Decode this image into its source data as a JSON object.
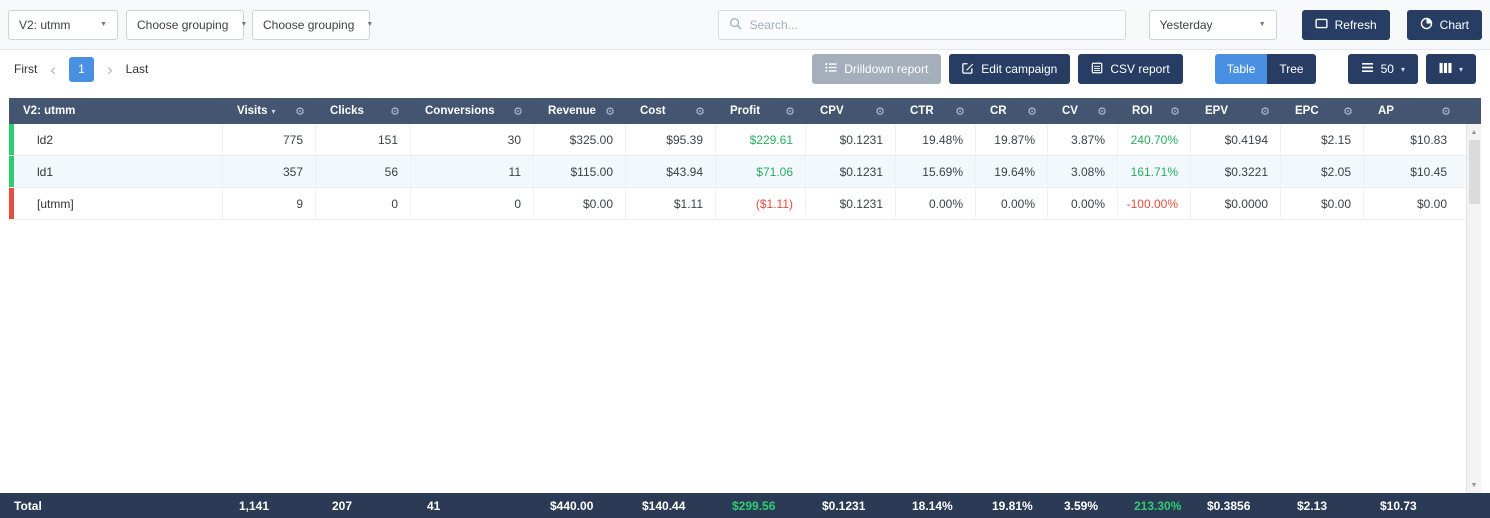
{
  "toolbar": {
    "campaign_dropdown": {
      "value": "V2: utmm"
    },
    "grouping_dropdown_1": {
      "value": "Choose grouping"
    },
    "grouping_dropdown_2": {
      "value": "Choose grouping"
    },
    "search": {
      "placeholder": "Search..."
    },
    "date_dropdown": {
      "value": "Yesterday"
    },
    "refresh_button": "Refresh",
    "chart_button": "Chart"
  },
  "pagination": {
    "first": "First",
    "current_page": "1",
    "last": "Last"
  },
  "actions": {
    "drilldown_button": "Drilldown report",
    "edit_campaign_button": "Edit campaign",
    "csv_button": "CSV report",
    "table_toggle": "Table",
    "tree_toggle": "Tree",
    "page_size": "50"
  },
  "table": {
    "name_header": "V2: utmm",
    "sorted_column": "Visits",
    "columns": [
      "Visits",
      "Clicks",
      "Conversions",
      "Revenue",
      "Cost",
      "Profit",
      "CPV",
      "CTR",
      "CR",
      "CV",
      "ROI",
      "EPV",
      "EPC",
      "AP"
    ],
    "colored_columns": {
      "profit_index": 5,
      "roi_index": 10
    },
    "rows": [
      {
        "status": "green",
        "name": "ld2",
        "trend": "positive",
        "values": [
          "775",
          "151",
          "30",
          "$325.00",
          "$95.39",
          "$229.61",
          "$0.1231",
          "19.48%",
          "19.87%",
          "3.87%",
          "240.70%",
          "$0.4194",
          "$2.15",
          "$10.83"
        ]
      },
      {
        "status": "green",
        "name": "ld1",
        "trend": "positive",
        "values": [
          "357",
          "56",
          "11",
          "$115.00",
          "$43.94",
          "$71.06",
          "$0.1231",
          "15.69%",
          "19.64%",
          "3.08%",
          "161.71%",
          "$0.3221",
          "$2.05",
          "$10.45"
        ]
      },
      {
        "status": "red",
        "name": "[utmm]",
        "trend": "negative",
        "values": [
          "9",
          "0",
          "0",
          "$0.00",
          "$1.11",
          "($1.11)",
          "$0.1231",
          "0.00%",
          "0.00%",
          "0.00%",
          "-100.00%",
          "$0.0000",
          "$0.00",
          "$0.00"
        ]
      }
    ],
    "total": {
      "label": "Total",
      "values": [
        "1,141",
        "207",
        "41",
        "$440.00",
        "$140.44",
        "$299.56",
        "$0.1231",
        "18.14%",
        "19.81%",
        "3.59%",
        "213.30%",
        "$0.3856",
        "$2.13",
        "$10.73"
      ]
    }
  },
  "colors": {
    "accent_blue": "#4a90e2",
    "navy": "#273d63",
    "header_bg": "#435570",
    "total_bg": "#2b3b55",
    "positive_green": "#27ae60",
    "negative_red": "#e74c3c",
    "total_green": "#2ecc71",
    "status_green": "#2ecc71",
    "status_red": "#e74c3c"
  }
}
